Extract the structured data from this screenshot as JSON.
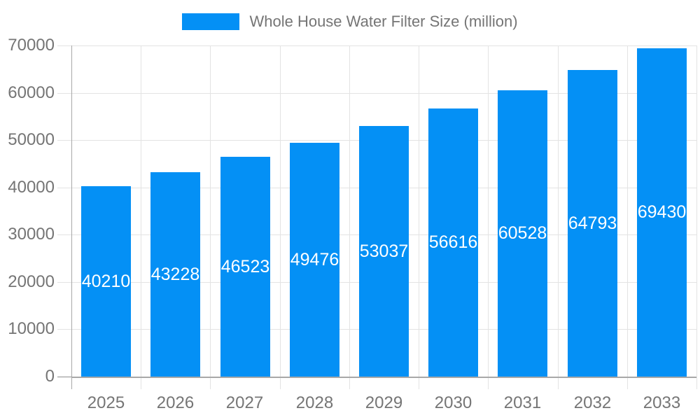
{
  "legend": {
    "label": "Whole House Water Filter Size (million)",
    "swatch_color": "#0490f5"
  },
  "chart_data": {
    "type": "bar",
    "title": "Whole House Water Filter Size (million)",
    "categories": [
      "2025",
      "2026",
      "2027",
      "2028",
      "2029",
      "2030",
      "2031",
      "2032",
      "2033"
    ],
    "series": [
      {
        "name": "Whole House Water Filter Size (million)",
        "values": [
          40210,
          43228,
          46523,
          49476,
          53037,
          56616,
          60528,
          64793,
          69430
        ]
      }
    ],
    "xlabel": "",
    "ylabel": "",
    "ylim": [
      0,
      70000
    ],
    "yticks": [
      0,
      10000,
      20000,
      30000,
      40000,
      50000,
      60000,
      70000
    ],
    "grid": true,
    "legend_position": "top",
    "bar_color": "#0490f5",
    "value_label_color": "#ffffff",
    "axis_text_color": "#757575",
    "gridline_color": "#e3e3e3",
    "axis_line_color": "#a8a8a8",
    "zero_tick_color": "#8f8f8f"
  }
}
